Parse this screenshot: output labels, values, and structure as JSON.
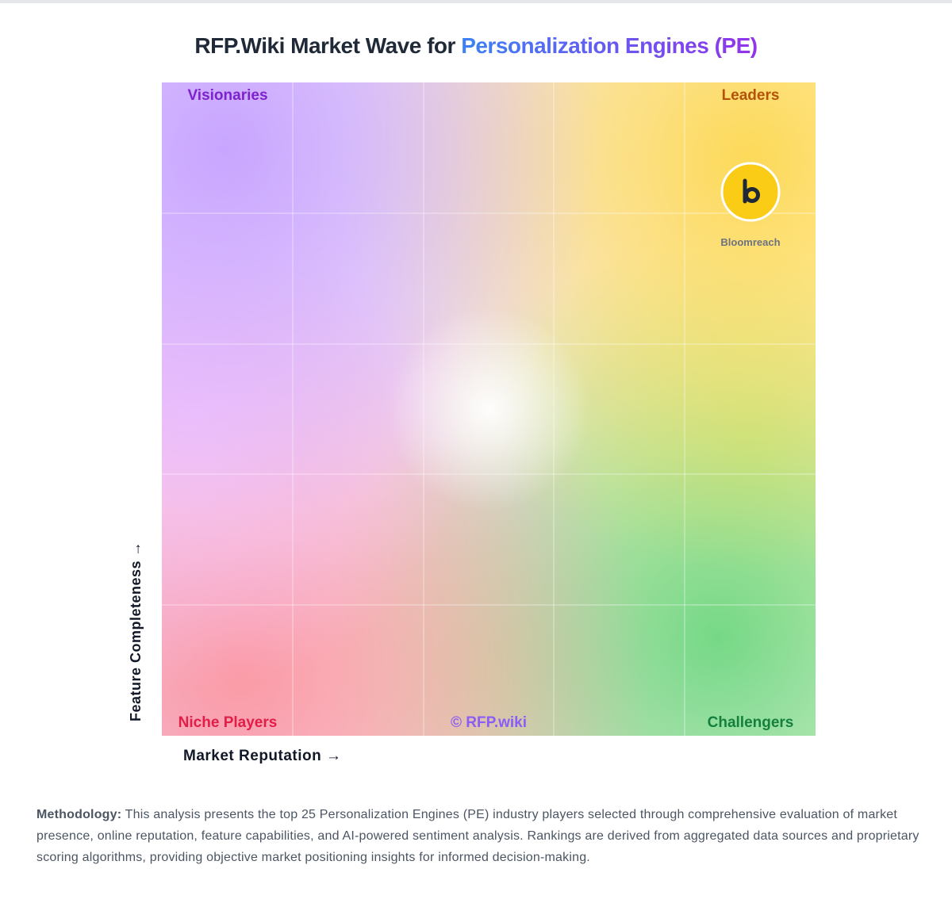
{
  "header": {
    "title_prefix": "RFP.Wiki Market Wave for ",
    "title_highlight": "Personalization Engines (PE)"
  },
  "quadrants": {
    "top_left": "Visionaries",
    "top_right": "Leaders",
    "bottom_left": "Niche Players",
    "bottom_right": "Challengers"
  },
  "watermark": "© RFP.wiki",
  "vendors": [
    {
      "name": "Bloomreach"
    }
  ],
  "axes": {
    "x_label": "Market Reputation →",
    "y_label": "Feature Completeness →"
  },
  "methodology": {
    "label": "Methodology:",
    "text": " This analysis presents the top 25 Personalization Engines (PE) industry players selected through comprehensive evaluation of market presence, online reputation, feature capabilities, and AI-powered sentiment analysis. Rankings are derived from aggregated data sources and proprietary scoring algorithms, providing objective market positioning insights for informed decision-making."
  }
}
